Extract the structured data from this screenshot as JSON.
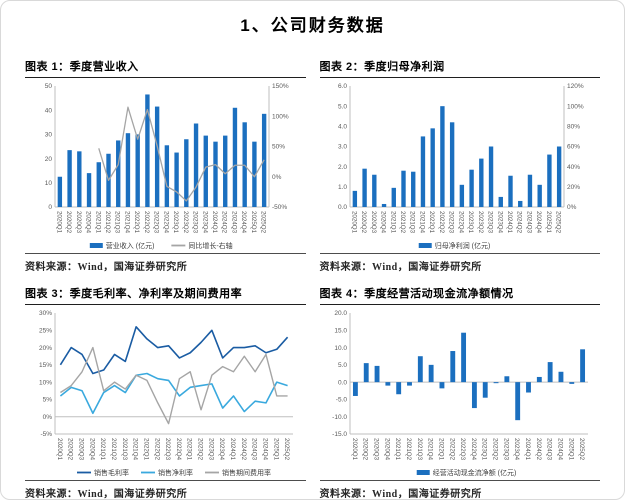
{
  "page": {
    "title": "1、公司财务数据"
  },
  "colors": {
    "bar_blue": "#1B6FBF",
    "line_gray": "#A5A5A5",
    "line_dark_blue": "#1A5CA3",
    "line_light_blue": "#3AA9DE",
    "axis": "#BFBFBF",
    "tick_text": "#595959"
  },
  "panels": [
    {
      "header": "图表 1：季度营业收入",
      "source": "资料来源：Wind，国海证券研究所"
    },
    {
      "header": "图表 2：季度归母净利润",
      "source": "资料来源：Wind，国海证券研究所"
    },
    {
      "header": "图表 3：季度毛利率、净利率及期间费用率",
      "source": "资料来源：Wind，国海证券研究所"
    },
    {
      "header": "图表 4：季度经营活动现金流净额情况",
      "source": "资料来源：Wind，国海证券研究所"
    }
  ],
  "chart_data": [
    {
      "type": "bar",
      "title": "季度营业收入",
      "categories": [
        "2020Q1",
        "2020Q2",
        "2020Q3",
        "2020Q4",
        "2021Q1",
        "2021Q2",
        "2021Q3",
        "2021Q4",
        "2022Q1",
        "2022Q2",
        "2022Q3",
        "2022Q4",
        "2023Q1",
        "2023Q2",
        "2023Q3",
        "2023Q4",
        "2024Q1",
        "2024Q2",
        "2024Q3",
        "2024Q4",
        "2025Q1",
        "2025Q2"
      ],
      "values": [
        12.5,
        23.5,
        23,
        14,
        18.5,
        22,
        27.5,
        30.5,
        30,
        46.5,
        41.5,
        25.5,
        22.5,
        28,
        34.5,
        29.5,
        27,
        29.5,
        41,
        35,
        27,
        38.5
      ],
      "bar_color": "#1B6FBF",
      "ylim": [
        0,
        50
      ],
      "y_ticks": [
        "0",
        "10",
        "20",
        "30",
        "40",
        "50"
      ],
      "y2lim": [
        -50,
        150
      ],
      "y2_ticks": [
        "-50%",
        "0%",
        "50%",
        "100%",
        "150%"
      ],
      "series": [
        {
          "name": "同比增长-右轴",
          "axis": "right",
          "color": "#A5A5A5",
          "width": 1.3,
          "values": [
            null,
            null,
            null,
            null,
            47,
            -6,
            20,
            115,
            62,
            111,
            51,
            -16,
            -25,
            -40,
            -17,
            16,
            20,
            5,
            19,
            19,
            0,
            28
          ]
        }
      ],
      "legend": [
        {
          "label": "营业收入 (亿元)",
          "type": "bar",
          "color": "#1B6FBF"
        },
        {
          "label": "同比增长-右轴",
          "type": "line",
          "color": "#A5A5A5"
        }
      ],
      "grid": false,
      "legend_position": "bottom"
    },
    {
      "type": "bar",
      "title": "季度归母净利润",
      "categories": [
        "2020Q1",
        "2020Q2",
        "2020Q3",
        "2020Q4",
        "2021Q1",
        "2021Q2",
        "2021Q3",
        "2021Q4",
        "2022Q1",
        "2022Q2",
        "2022Q3",
        "2022Q4",
        "2023Q1",
        "2023Q2",
        "2023Q3",
        "2023Q4",
        "2024Q1",
        "2024Q2",
        "2024Q3",
        "2024Q4",
        "2025Q1",
        "2025Q2"
      ],
      "values": [
        0.8,
        1.9,
        1.6,
        0.15,
        0.95,
        1.8,
        1.75,
        3.5,
        3.9,
        5.0,
        4.2,
        1.1,
        1.85,
        2.4,
        3.0,
        0.5,
        1.55,
        0.3,
        1.6,
        1.1,
        2.6,
        3.0
      ],
      "bar_color": "#1B6FBF",
      "ylim": [
        0,
        6
      ],
      "y_ticks": [
        "0.0",
        "1.0",
        "2.0",
        "3.0",
        "4.0",
        "5.0",
        "6.0"
      ],
      "y2lim": [
        0,
        120
      ],
      "y2_ticks": [
        "0%",
        "20%",
        "40%",
        "60%",
        "80%",
        "100%",
        "120%"
      ],
      "series": [],
      "legend": [
        {
          "label": "归母净利润 (亿元)",
          "type": "bar",
          "color": "#1B6FBF"
        }
      ],
      "grid": false,
      "legend_position": "bottom"
    },
    {
      "type": "line",
      "title": "季度毛利率、净利率及期间费用率",
      "categories": [
        "2020Q1",
        "2020Q2",
        "2020Q3",
        "2020Q4",
        "2021Q1",
        "2021Q2",
        "2021Q3",
        "2021Q4",
        "2022Q1",
        "2022Q2",
        "2022Q3",
        "2022Q4",
        "2023Q1",
        "2023Q2",
        "2023Q3",
        "2023Q4",
        "2024Q1",
        "2024Q2",
        "2024Q3",
        "2024Q4",
        "2025Q1",
        "2025Q2"
      ],
      "ylim": [
        -5,
        30
      ],
      "y_ticks": [
        "-5%",
        "0%",
        "5%",
        "10%",
        "15%",
        "20%",
        "25%",
        "30%"
      ],
      "series": [
        {
          "name": "销售毛利率",
          "color": "#1A5CA3",
          "width": 1.6,
          "values": [
            15,
            20,
            18,
            12.5,
            13.5,
            18,
            16,
            26,
            22.5,
            20,
            20.5,
            17,
            18.5,
            21.5,
            25,
            17,
            20,
            20,
            20.5,
            18.5,
            19.5,
            23
          ]
        },
        {
          "name": "销售净利率",
          "color": "#3AA9DE",
          "width": 1.6,
          "values": [
            6,
            8.5,
            7.5,
            1,
            7,
            9,
            7,
            12,
            12.5,
            11,
            10.5,
            6,
            8.5,
            9,
            9.5,
            2.5,
            6,
            1.5,
            4.5,
            4,
            10,
            9
          ]
        },
        {
          "name": "销售期间费用率",
          "color": "#A5A5A5",
          "width": 1.4,
          "values": [
            7,
            9,
            13,
            20,
            7.5,
            10,
            8,
            12,
            10.5,
            4,
            -2,
            11,
            13,
            2,
            12,
            14.5,
            13,
            17.5,
            13,
            18,
            6,
            6
          ]
        }
      ],
      "legend": [
        {
          "label": "销售毛利率",
          "type": "line",
          "color": "#1A5CA3"
        },
        {
          "label": "销售净利率",
          "type": "line",
          "color": "#3AA9DE"
        },
        {
          "label": "销售期间费用率",
          "type": "line",
          "color": "#A5A5A5"
        }
      ],
      "grid": false,
      "legend_position": "bottom"
    },
    {
      "type": "bar",
      "title": "季度经营活动现金流净额情况",
      "categories": [
        "2020Q1",
        "2020Q2",
        "2020Q3",
        "2020Q4",
        "2021Q1",
        "2021Q2",
        "2021Q3",
        "2021Q4",
        "2022Q1",
        "2022Q2",
        "2022Q3",
        "2022Q4",
        "2023Q1",
        "2023Q2",
        "2023Q3",
        "2023Q4",
        "2024Q1",
        "2024Q2",
        "2024Q3",
        "2024Q4",
        "2025Q1",
        "2025Q2"
      ],
      "values": [
        -4,
        5.5,
        4.7,
        -1,
        -3.5,
        -1,
        7.5,
        5,
        -1.8,
        9,
        14.3,
        -7.5,
        -4.5,
        -0.3,
        1.7,
        -11,
        -3,
        1.5,
        5.8,
        3,
        -0.5,
        9.5
      ],
      "bar_color": "#1B6FBF",
      "ylim": [
        -15,
        20
      ],
      "y_ticks": [
        "-15.0",
        "-10.0",
        "-5.0",
        "0.0",
        "5.0",
        "10.0",
        "15.0",
        "20.0"
      ],
      "series": [],
      "legend": [
        {
          "label": "经营活动现金流净额 (亿元)",
          "type": "bar",
          "color": "#1B6FBF"
        }
      ],
      "grid": false,
      "legend_position": "bottom"
    }
  ]
}
